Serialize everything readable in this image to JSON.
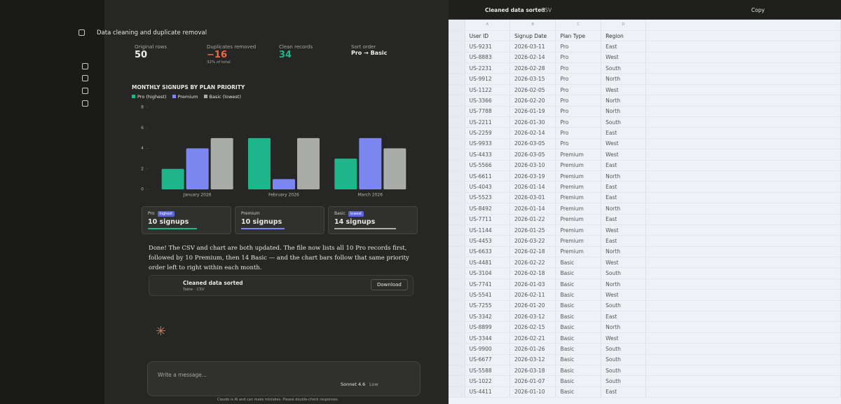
{
  "header": {
    "title": "Data cleaning and duplicate removal"
  },
  "stats": [
    {
      "label": "Original rows",
      "value": "50"
    },
    {
      "label": "Duplicates removed",
      "value": "−16",
      "note": "32% of total"
    },
    {
      "label": "Clean records",
      "value": "34"
    },
    {
      "label": "Sort order",
      "value": "Pro → Basic"
    }
  ],
  "chart_data": {
    "type": "bar",
    "title": "MONTHLY SIGNUPS BY PLAN PRIORITY",
    "categories": [
      "January 2026",
      "February 2026",
      "March 2026"
    ],
    "series": [
      {
        "name": "Pro (highest)",
        "color": "#1fb58a",
        "values": [
          2,
          5,
          3
        ]
      },
      {
        "name": "Premium",
        "color": "#7b86f0",
        "values": [
          4,
          1,
          5
        ]
      },
      {
        "name": "Basic (lowest)",
        "color": "#a9aca8",
        "values": [
          5,
          5,
          4
        ]
      }
    ],
    "ylim": [
      0,
      8
    ],
    "yticks": [
      0,
      2,
      4,
      6,
      8
    ],
    "legend": "top-left"
  },
  "cards": [
    {
      "name": "Pro",
      "badge": "highest",
      "count": "10 signups",
      "color": "#1fb58a"
    },
    {
      "name": "Premium",
      "count": "10 signups",
      "color": "#7b86f0"
    },
    {
      "name": "Basic",
      "badge": "lowest",
      "count": "14 signups",
      "color": "#a9aca8"
    }
  ],
  "message": "Done! The CSV and chart are both updated. The file now lists all 10 Pro records first, followed by 10 Premium, then 14 Basic — and the chart bars follow that same priority order left to right within each month.",
  "artifact": {
    "title": "Cleaned data sorted",
    "subtitle": "Table · CSV",
    "button": "Download"
  },
  "composer": {
    "placeholder": "Write a message...",
    "model": "Sonnet 4.6",
    "effort": "Low",
    "disclaimer": "Claude is AI and can make mistakes. Please double-check responses."
  },
  "panel": {
    "title": "Cleaned data sorted",
    "format": "CSV",
    "copy": "Copy"
  },
  "table": {
    "columns": [
      "A",
      "B",
      "C",
      "D"
    ],
    "header": [
      "User ID",
      "Signup Date",
      "Plan Type",
      "Region"
    ],
    "rows": [
      [
        "US-9231",
        "2026-03-11",
        "Pro",
        "East"
      ],
      [
        "US-8883",
        "2026-02-14",
        "Pro",
        "West"
      ],
      [
        "US-2231",
        "2026-02-28",
        "Pro",
        "South"
      ],
      [
        "US-9912",
        "2026-03-15",
        "Pro",
        "North"
      ],
      [
        "US-1122",
        "2026-02-05",
        "Pro",
        "West"
      ],
      [
        "US-3366",
        "2026-02-20",
        "Pro",
        "North"
      ],
      [
        "US-7788",
        "2026-01-19",
        "Pro",
        "North"
      ],
      [
        "US-2211",
        "2026-01-30",
        "Pro",
        "South"
      ],
      [
        "US-2259",
        "2026-02-14",
        "Pro",
        "East"
      ],
      [
        "US-9933",
        "2026-03-05",
        "Pro",
        "West"
      ],
      [
        "US-4433",
        "2026-03-05",
        "Premium",
        "West"
      ],
      [
        "US-5566",
        "2026-03-10",
        "Premium",
        "East"
      ],
      [
        "US-6611",
        "2026-03-19",
        "Premium",
        "North"
      ],
      [
        "US-4043",
        "2026-01-14",
        "Premium",
        "East"
      ],
      [
        "US-5523",
        "2026-03-01",
        "Premium",
        "East"
      ],
      [
        "US-8492",
        "2026-01-14",
        "Premium",
        "North"
      ],
      [
        "US-7711",
        "2026-01-22",
        "Premium",
        "East"
      ],
      [
        "US-1144",
        "2026-01-25",
        "Premium",
        "West"
      ],
      [
        "US-4453",
        "2026-03-22",
        "Premium",
        "East"
      ],
      [
        "US-6633",
        "2026-02-18",
        "Premium",
        "North"
      ],
      [
        "US-4481",
        "2026-02-22",
        "Basic",
        "West"
      ],
      [
        "US-3104",
        "2026-02-18",
        "Basic",
        "South"
      ],
      [
        "US-7741",
        "2026-01-03",
        "Basic",
        "North"
      ],
      [
        "US-5541",
        "2026-02-11",
        "Basic",
        "West"
      ],
      [
        "US-7255",
        "2026-01-20",
        "Basic",
        "South"
      ],
      [
        "US-3342",
        "2026-03-12",
        "Basic",
        "East"
      ],
      [
        "US-8899",
        "2026-02-15",
        "Basic",
        "North"
      ],
      [
        "US-3344",
        "2026-02-21",
        "Basic",
        "West"
      ],
      [
        "US-9900",
        "2026-01-26",
        "Basic",
        "South"
      ],
      [
        "US-6677",
        "2026-03-12",
        "Basic",
        "South"
      ],
      [
        "US-5588",
        "2026-03-18",
        "Basic",
        "South"
      ],
      [
        "US-1022",
        "2026-01-07",
        "Basic",
        "South"
      ],
      [
        "US-4411",
        "2026-01-10",
        "Basic",
        "East"
      ]
    ]
  }
}
